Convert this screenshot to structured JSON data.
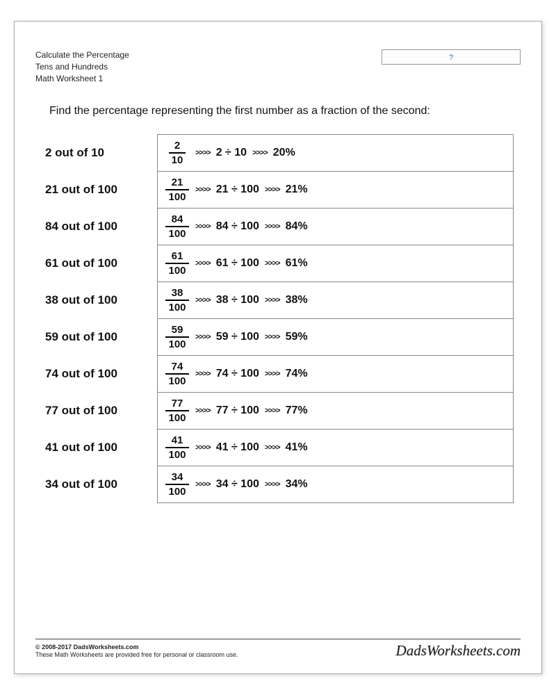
{
  "header": {
    "line1": "Calculate the Percentage",
    "line2": "Tens and Hundreds",
    "line3": "Math Worksheet 1",
    "name_box": "?"
  },
  "instructions": "Find the percentage representing the first number as a fraction of the second:",
  "arrow_glyph": ">>>>",
  "division_sign": "÷",
  "problems": [
    {
      "a": "2",
      "b": "10",
      "pct": "20%"
    },
    {
      "a": "21",
      "b": "100",
      "pct": "21%"
    },
    {
      "a": "84",
      "b": "100",
      "pct": "84%"
    },
    {
      "a": "61",
      "b": "100",
      "pct": "61%"
    },
    {
      "a": "38",
      "b": "100",
      "pct": "38%"
    },
    {
      "a": "59",
      "b": "100",
      "pct": "59%"
    },
    {
      "a": "74",
      "b": "100",
      "pct": "74%"
    },
    {
      "a": "77",
      "b": "100",
      "pct": "77%"
    },
    {
      "a": "41",
      "b": "100",
      "pct": "41%"
    },
    {
      "a": "34",
      "b": "100",
      "pct": "34%"
    }
  ],
  "footer": {
    "copyright": "© 2008-2017 DadsWorksheets.com",
    "note": "These Math Worksheets are provided free for personal or classroom use.",
    "brand": "DadsWorksheets.com"
  },
  "labels": {
    "out_of": " out of "
  }
}
